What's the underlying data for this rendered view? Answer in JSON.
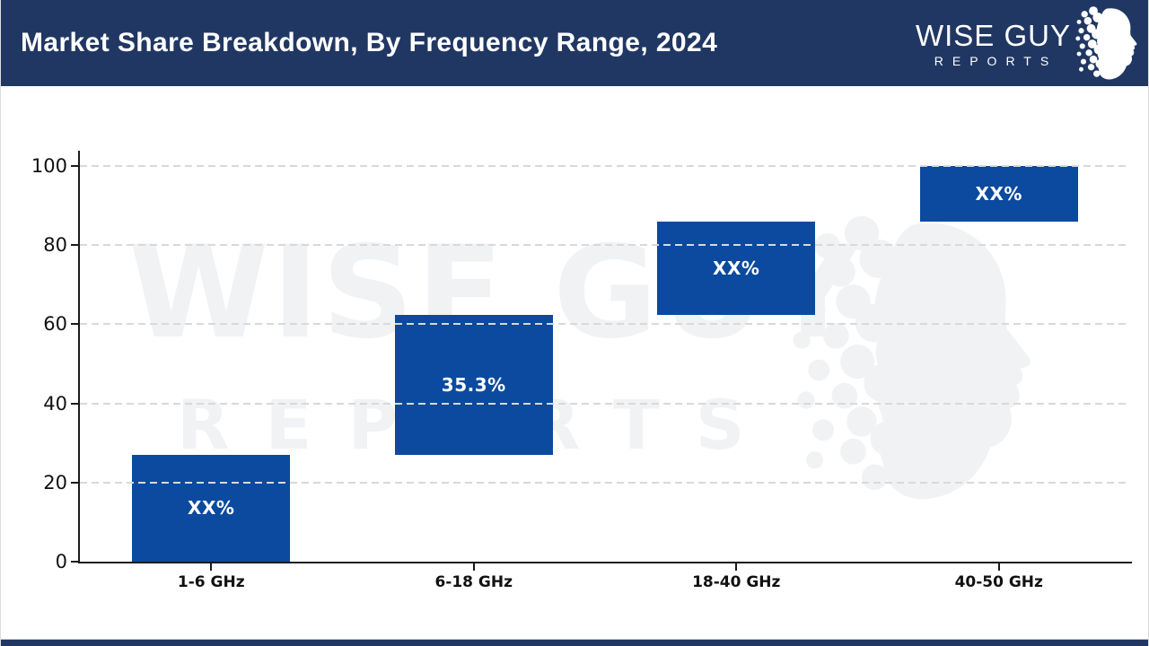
{
  "header": {
    "title": "Market Share Breakdown, By Frequency Range, 2024",
    "logo": {
      "wordmark": "WISE GUY",
      "subtext": "REPORTS",
      "head_icon": "dotted-head-profile"
    }
  },
  "watermark": {
    "wordmark": "WISE GUY",
    "subtext": "REPORTS",
    "head_icon": "dotted-head-profile"
  },
  "chart_data": {
    "type": "bar",
    "subtype": "waterfall-floating-bars",
    "title": "Market Share Breakdown, By Frequency Range, 2024",
    "categories": [
      "1-6 GHz",
      "6-18 GHz",
      "18-40 GHz",
      "40-50 GHz"
    ],
    "series": [
      {
        "category": "1-6 GHz",
        "label": "XX%",
        "start": 0,
        "end": 27
      },
      {
        "category": "6-18 GHz",
        "label": "35.3%",
        "start": 27,
        "end": 62.3
      },
      {
        "category": "18-40 GHz",
        "label": "XX%",
        "start": 62.3,
        "end": 85.9
      },
      {
        "category": "40-50 GHz",
        "label": "XX%",
        "start": 85.9,
        "end": 100
      }
    ],
    "xlabel": "",
    "ylabel": "",
    "ylim": [
      0,
      100
    ],
    "yticks": [
      0,
      20,
      40,
      60,
      80,
      100
    ],
    "grid": "horizontal-dashed",
    "legend": "none",
    "bar_color": "#0b4a9e",
    "bar_label_color": "#ffffff"
  },
  "colors": {
    "header_bg": "#213763",
    "footer_bar": "#213763",
    "bar": "#0b4a9e",
    "gridline": "#d9d9d9",
    "axis": "#1a1a1a",
    "watermark": "#f1f2f4",
    "title_text": "#ffffff"
  }
}
